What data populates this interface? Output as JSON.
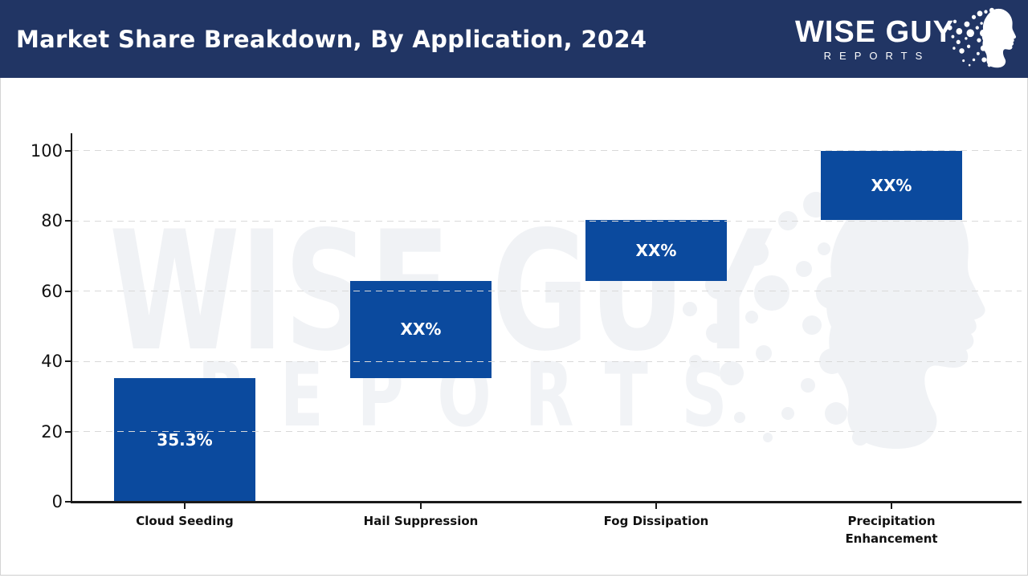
{
  "header": {
    "title": "Market Share Breakdown, By Application, 2024",
    "bg_color": "#213564",
    "logo": {
      "line1": "WISE GUY",
      "line2": "REPORTS"
    }
  },
  "watermark": {
    "line1": "WISE GUY",
    "line2": "REPORTS"
  },
  "chart_data": {
    "type": "bar",
    "subtype": "waterfall",
    "title": "Market Share Breakdown, By Application, 2024",
    "categories": [
      "Cloud Seeding",
      "Hail Suppression",
      "Fog Dissipation",
      "Precipitation Enhancement"
    ],
    "segments": [
      {
        "category": "Cloud Seeding",
        "start": 0,
        "end": 35.3,
        "label": "35.3%"
      },
      {
        "category": "Hail Suppression",
        "start": 35.3,
        "end": 62.8,
        "label": "XX%"
      },
      {
        "category": "Fog Dissipation",
        "start": 62.9,
        "end": 80.2,
        "label": "XX%"
      },
      {
        "category": "Precipitation Enhancement",
        "start": 80.2,
        "end": 100,
        "label": "XX%"
      }
    ],
    "values_visible": [
      "35.3%",
      "XX%",
      "XX%",
      "XX%"
    ],
    "y_ticks": [
      0,
      20,
      40,
      60,
      80,
      100
    ],
    "ylim": [
      0,
      105
    ],
    "xlabel": "",
    "ylabel": "",
    "grid": "horizontal-dashed",
    "grid_color": "#d9d9d9",
    "axis_color": "#1a1a1a",
    "bar_color": "#0b4a9e",
    "bar_label_color": "#ffffff",
    "legend": "none"
  }
}
